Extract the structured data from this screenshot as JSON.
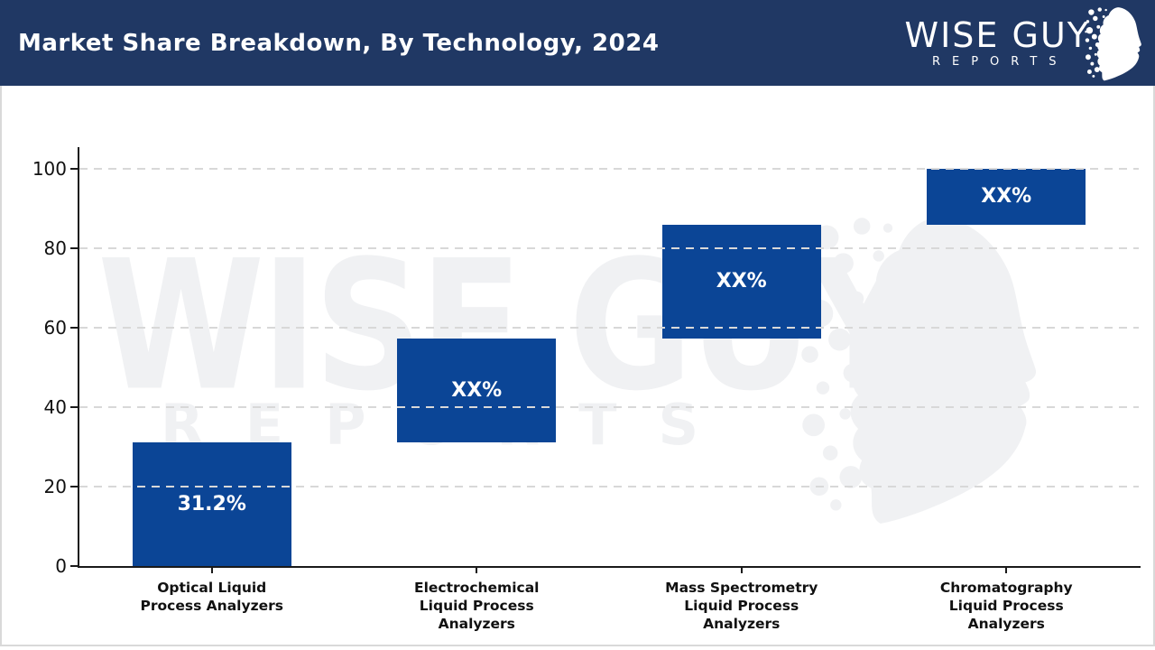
{
  "header": {
    "title": "Market Share Breakdown, By Technology, 2024",
    "logo": {
      "wordmark": "WISE GUY",
      "subtitle": "REPORTS",
      "face_icon": "dotted-face-profile"
    }
  },
  "watermark": {
    "wordmark": "WISE GUY",
    "subtitle": "REPORTS",
    "face_icon": "dotted-face-profile"
  },
  "colors": {
    "header_bg": "#203864",
    "bar_fill": "#0b4596",
    "bar_label_text": "#ffffff",
    "grid_line": "#d8d8d8",
    "axis_line": "#1a1a1a",
    "watermark_fill": "#f0f1f3",
    "page_bg": "#ffffff",
    "border": "#d9d9d9"
  },
  "chart_data": {
    "type": "bar",
    "subtype": "floating segmented bars (waterfall-style market share)",
    "title": "Market Share Breakdown, By Technology, 2024",
    "xlabel": "",
    "ylabel": "",
    "ylim": [
      0,
      100
    ],
    "yticks": [
      0,
      20,
      40,
      60,
      80,
      100
    ],
    "grid": "horizontal dashed",
    "legend": "none",
    "categories": [
      "Optical Liquid Process Analyzers",
      "Electrochemical Liquid Process Analyzers",
      "Mass Spectrometry Liquid Process Analyzers",
      "Chromatography Liquid Process Analyzers"
    ],
    "category_lines": [
      [
        "Optical Liquid",
        "Process Analyzers"
      ],
      [
        "Electrochemical",
        "Liquid Process",
        "Analyzers"
      ],
      [
        "Mass Spectrometry",
        "Liquid Process",
        "Analyzers"
      ],
      [
        "Chromatography",
        "Liquid Process",
        "Analyzers"
      ]
    ],
    "segments": [
      {
        "category": "Optical Liquid Process Analyzers",
        "start": 0,
        "end": 31.2,
        "label": "31.2%"
      },
      {
        "category": "Electrochemical Liquid Process Analyzers",
        "start": 31.2,
        "end": 57.3,
        "label": "XX%"
      },
      {
        "category": "Mass Spectrometry Liquid Process Analyzers",
        "start": 57.3,
        "end": 86.0,
        "label": "XX%"
      },
      {
        "category": "Chromatography Liquid Process Analyzers",
        "start": 86.0,
        "end": 100.0,
        "label": "XX%"
      }
    ]
  }
}
